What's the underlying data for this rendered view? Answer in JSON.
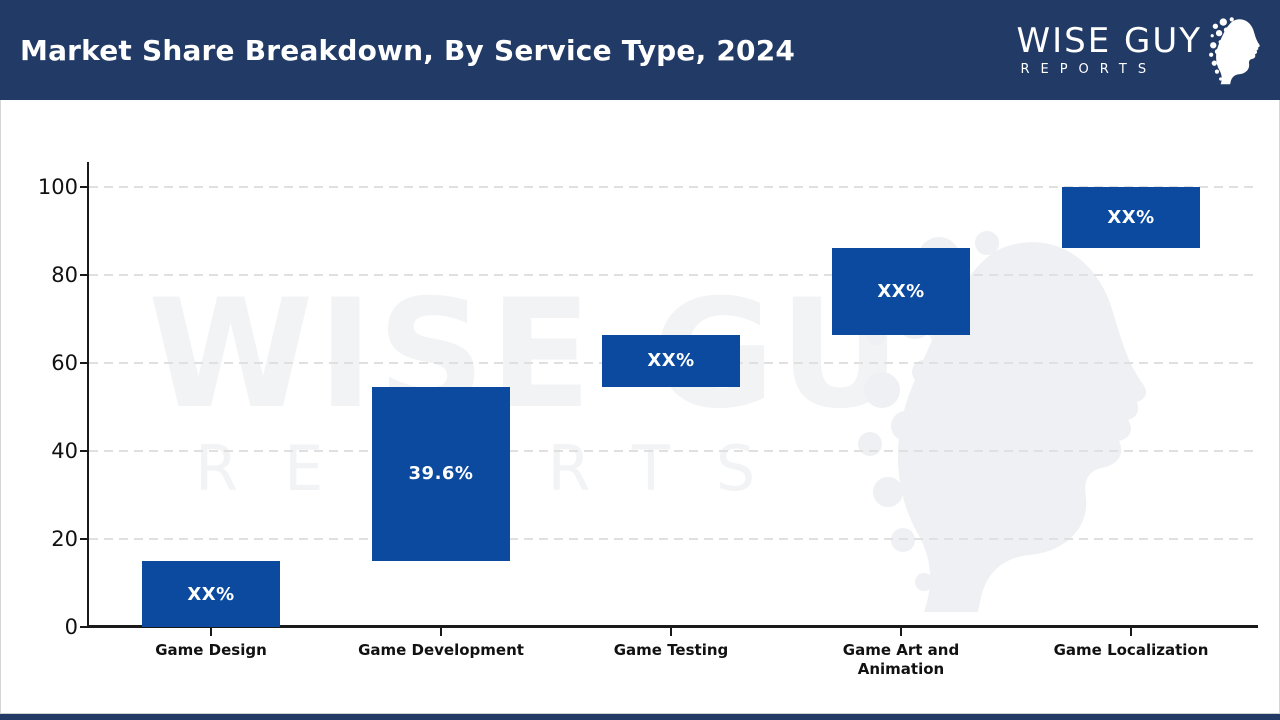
{
  "header": {
    "title": "Market Share Breakdown, By Service Type, 2024",
    "logo": {
      "line1": "WISE GUY",
      "line2": "REPORTS"
    }
  },
  "watermark": {
    "line1": "WISE GUY",
    "line2": "REPORTS"
  },
  "colors": {
    "header_bg": "#213a66",
    "bar": "#0b4a9f",
    "grid": "#e0e0e0",
    "axis": "#1a1a1a",
    "bar_label_text": "#ffffff",
    "watermark_gray": "#f2f3f5"
  },
  "chart_data": {
    "type": "bar",
    "subtype": "waterfall",
    "title": "Market Share Breakdown, By Service Type, 2024",
    "categories": [
      "Game Design",
      "Game Development",
      "Game Testing",
      "Game Art and Animation",
      "Game Localization"
    ],
    "segments": [
      {
        "category": "Game Design",
        "start": 0,
        "end": 15,
        "label": "XX%"
      },
      {
        "category": "Game Development",
        "start": 15,
        "end": 54.6,
        "label": "39.6%"
      },
      {
        "category": "Game Testing",
        "start": 54.6,
        "end": 66.4,
        "label": "XX%"
      },
      {
        "category": "Game Art and Animation",
        "start": 66.4,
        "end": 86.1,
        "label": "XX%"
      },
      {
        "category": "Game Localization",
        "start": 86.1,
        "end": 100,
        "label": "XX%"
      }
    ],
    "ylim": [
      0,
      100
    ],
    "yticks": [
      0,
      20,
      40,
      60,
      80,
      100
    ],
    "xlabel": "",
    "ylabel": "",
    "grid": "horizontal-dashed",
    "legend": "none",
    "bar_color": "#0b4a9f"
  }
}
